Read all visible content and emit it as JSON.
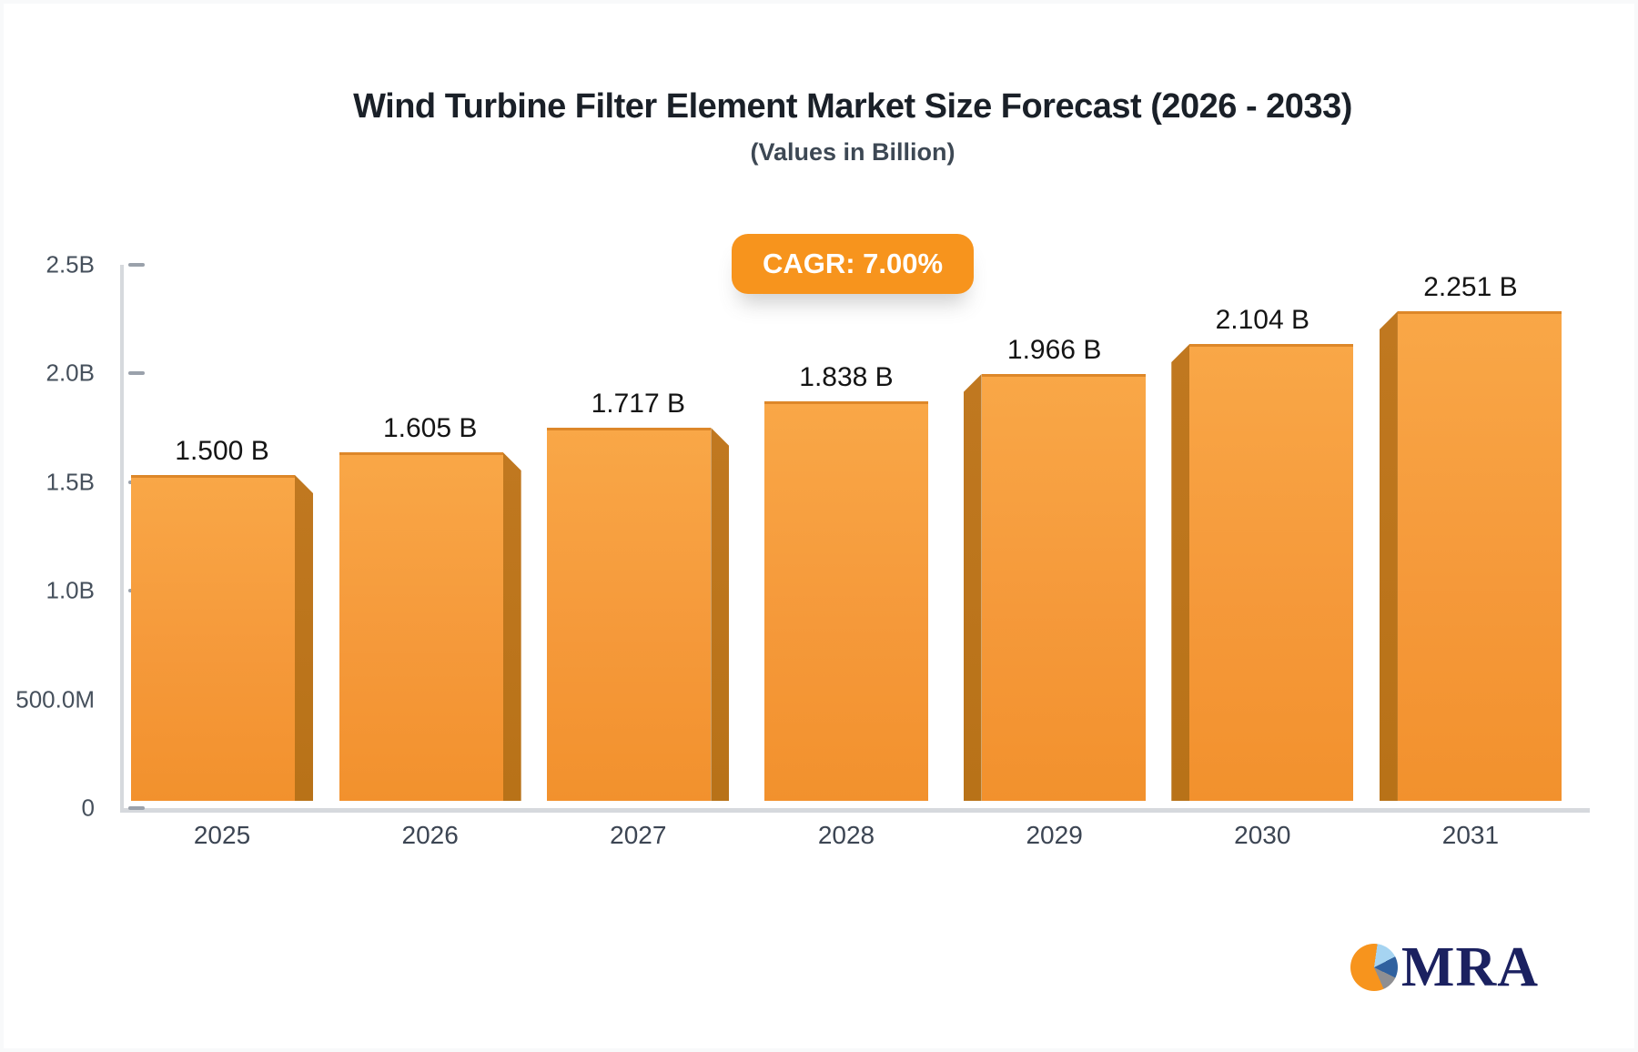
{
  "header": {
    "title": "Wind Turbine Filter Element Market Size Forecast (2026 - 2033)",
    "subtitle": "(Values in Billion)",
    "cagr_badge": "CAGR: 7.00%"
  },
  "chart_data": {
    "type": "bar",
    "title": "Wind Turbine Filter Element Market Size Forecast (2026 - 2033)",
    "subtitle": "(Values in Billion)",
    "annotation": "CAGR: 7.00%",
    "categories": [
      "2025",
      "2026",
      "2027",
      "2028",
      "2029",
      "2030",
      "2031"
    ],
    "values": [
      1.5,
      1.605,
      1.717,
      1.838,
      1.966,
      2.104,
      2.251
    ],
    "value_labels": [
      "1.500 B",
      "1.605 B",
      "1.717 B",
      "1.838 B",
      "1.966 B",
      "2.104 B",
      "2.251 B"
    ],
    "xlabel": "",
    "ylabel": "",
    "ylim": [
      0,
      2.5
    ],
    "grid": false,
    "legend": "none",
    "y_ticks": [
      {
        "label": "2.5B",
        "value": 2.5,
        "tick_mark": true
      },
      {
        "label": "2.0B",
        "value": 2.0,
        "tick_mark": true
      },
      {
        "label": "1.5B",
        "value": 1.5,
        "tick_mark": true
      },
      {
        "label": "1.0B",
        "value": 1.0,
        "tick_mark": true
      },
      {
        "label": "500.0M",
        "value": 0.5,
        "tick_mark": false
      },
      {
        "label": "0",
        "value": 0.0,
        "tick_mark": true
      }
    ]
  },
  "logo": {
    "brand": "MRA",
    "icon": "pie-chart-icon"
  },
  "colors": {
    "accent": "#F7941D",
    "bar_face_top": "#F9A747",
    "bar_face_bottom": "#F2912D",
    "bar_side": "#BC741B",
    "bar_top_edge": "#DD8729",
    "axis_line": "#D6D9DD",
    "tick_mark": "#9AA1AB",
    "title_text": "#1A2028",
    "subtitle_text": "#3D4854",
    "axis_label_text": "#3C4553",
    "value_label_text": "#141414",
    "badge_text": "#FFFFFF",
    "logo_navy": "#1B2160",
    "logo_pie_light_blue": "#A6D4F1",
    "logo_pie_blue": "#30619F",
    "logo_pie_gray": "#8F8F92"
  }
}
